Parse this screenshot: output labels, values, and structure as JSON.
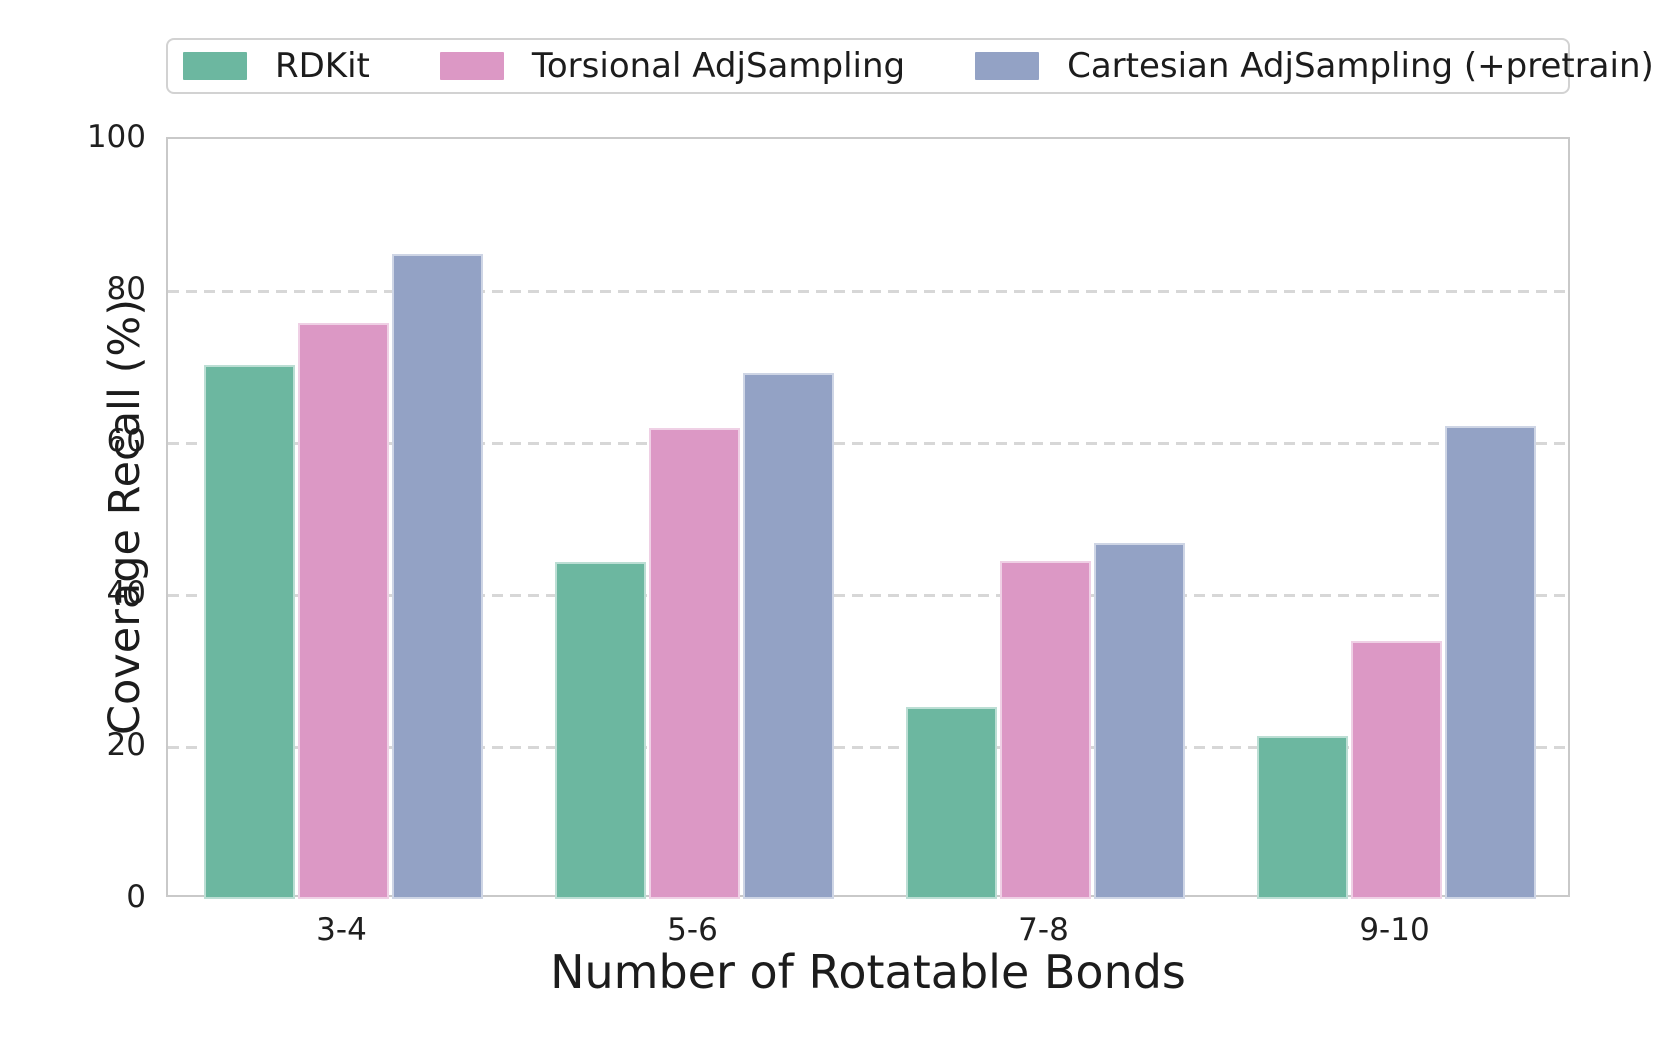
{
  "chart_data": {
    "type": "bar",
    "title": "",
    "xlabel": "Number of Rotatable Bonds",
    "ylabel": "Coverage Recall (%)",
    "categories": [
      "3-4",
      "5-6",
      "7-8",
      "9-10"
    ],
    "series": [
      {
        "name": "RDKit",
        "color": "#6cb7a0",
        "values": [
          70.3,
          44.4,
          25.3,
          21.5
        ]
      },
      {
        "name": "Torsional AdjSampling",
        "color": "#dc98c5",
        "values": [
          75.8,
          62.0,
          44.5,
          34.0
        ]
      },
      {
        "name": "Cartesian AdjSampling (+pretrain)",
        "color": "#93a2c5",
        "values": [
          84.9,
          69.2,
          46.9,
          62.3
        ]
      }
    ],
    "ylim": [
      0,
      100
    ],
    "yticks": [
      0,
      20,
      40,
      60,
      80,
      100
    ],
    "grid": "horizontal dashed lines at 20, 40, 60, 80",
    "legend_position": "top, horizontal, full plot width",
    "colors": {
      "grid_line": "#d7d7d7",
      "spine": "#c9c9c9",
      "text": "#1c1c1c",
      "background": "#ffffff"
    }
  }
}
